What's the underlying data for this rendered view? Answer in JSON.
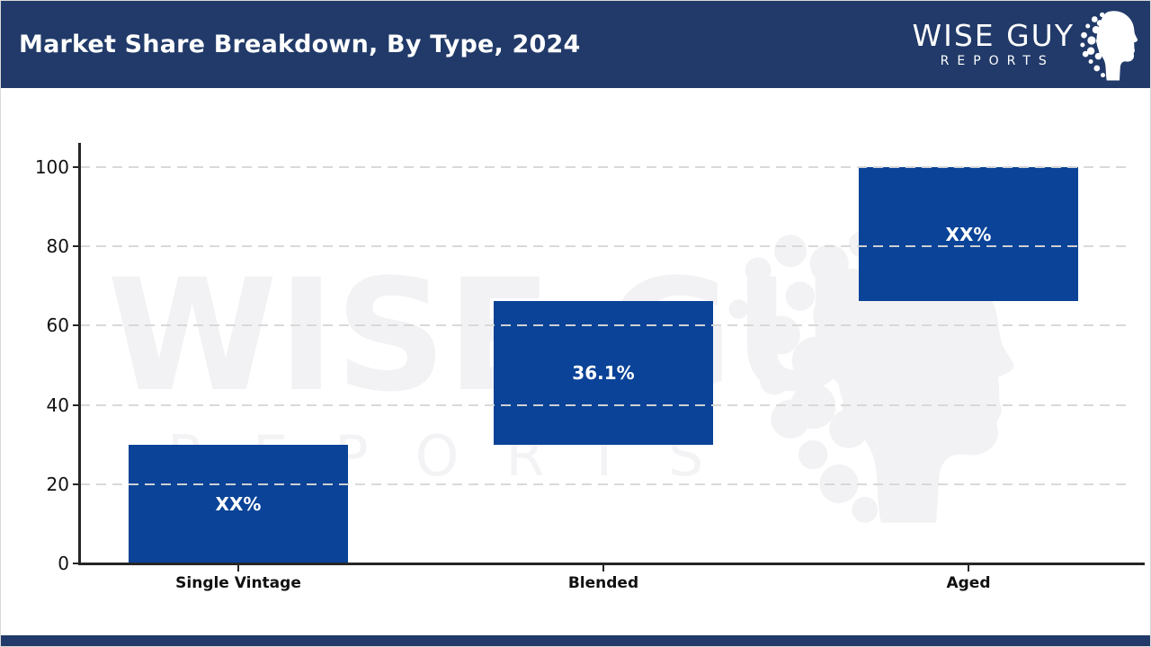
{
  "header": {
    "title": "Market Share Breakdown, By Type, 2024",
    "logo": {
      "line1": "WISE GUY",
      "line2": "REPORTS"
    }
  },
  "watermark": {
    "line1": "WISE GUY",
    "line2": "REPORTS"
  },
  "colors": {
    "header_bg": "#213a69",
    "footer_bg": "#213a69",
    "bar": "#0a4397",
    "bar_label": "#ffffff",
    "grid": "#d7d7d7",
    "axis": "#262626",
    "watermark": "#f2f2f4"
  },
  "chart_data": {
    "type": "bar",
    "variant": "floating-waterfall",
    "title": "Market Share Breakdown, By Type, 2024",
    "categories": [
      "Single Vintage",
      "Blended",
      "Aged"
    ],
    "segments": [
      {
        "category": "Single Vintage",
        "start": 0,
        "end": 30.0,
        "label": "XX%"
      },
      {
        "category": "Blended",
        "start": 30.0,
        "end": 66.1,
        "label": "36.1%"
      },
      {
        "category": "Aged",
        "start": 66.1,
        "end": 100.0,
        "label": "XX%"
      }
    ],
    "xlabel": "",
    "ylabel": "",
    "ylim": [
      0,
      100
    ],
    "yticks": [
      0,
      20,
      40,
      60,
      80,
      100
    ],
    "grid": "horizontal-dashed",
    "legend": "none"
  }
}
